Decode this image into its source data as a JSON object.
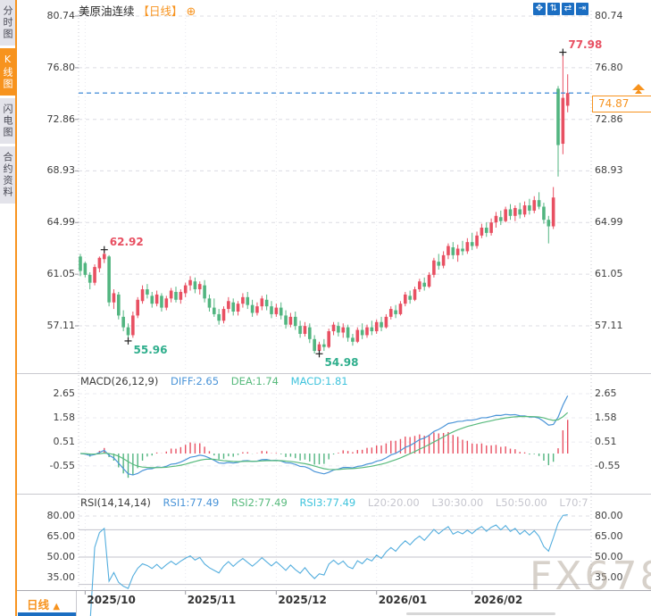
{
  "header": {
    "title": "美原油连续",
    "period_tag": "【日线】",
    "expand_icon": "⊕"
  },
  "toolbar": {
    "icons": [
      {
        "name": "pan-icon",
        "glyph": "✥"
      },
      {
        "name": "zoom-vertical-icon",
        "glyph": "⇅"
      },
      {
        "name": "zoom-horizontal-icon",
        "glyph": "⇄"
      },
      {
        "name": "jump-to-latest-icon",
        "glyph": "⇥"
      }
    ]
  },
  "sidebar": {
    "items": [
      {
        "label": "分时图",
        "active": false
      },
      {
        "label": "K线图",
        "active": true
      },
      {
        "label": "闪电图",
        "active": false
      },
      {
        "label": "合约资料",
        "active": false
      }
    ]
  },
  "bottom_bar": {
    "period_label": "日线",
    "arrow": "▲"
  },
  "watermark": "FX678",
  "colors": {
    "up": "#e85062",
    "down": "#52b580",
    "label_up": "#e85062",
    "label_down": "#2eae8c",
    "accent_orange": "#f7931e",
    "last_price_line": "#2b7fd4",
    "diff_line": "#4a94d8",
    "dea_line": "#58ba7d",
    "rsi_line": "#54aede",
    "grid": "#dcdce3",
    "level_line": "#c3c3cb",
    "axis_text": "#404040",
    "icon_blue": "#1b6ec2",
    "cross": "#222222"
  },
  "chart_data": {
    "type": "candlestick",
    "symbol": "美原油连续",
    "interval": "日线",
    "x_ticks": [
      {
        "label": "2025/10",
        "index": 1
      },
      {
        "label": "2025/11",
        "index": 22
      },
      {
        "label": "2025/12",
        "index": 41
      },
      {
        "label": "2026/01",
        "index": 62
      },
      {
        "label": "2026/02",
        "index": 82
      }
    ],
    "main": {
      "y_ticks": [
        "80.74",
        "76.80",
        "72.86",
        "68.93",
        "64.99",
        "61.05",
        "57.11"
      ],
      "last_price": "74.87",
      "annotations": [
        {
          "index": 5,
          "side": "high",
          "label": "62.92"
        },
        {
          "index": 10,
          "side": "low",
          "label": "55.96"
        },
        {
          "index": 50,
          "side": "low",
          "label": "54.98"
        },
        {
          "index": 101,
          "side": "high",
          "label": "77.98"
        }
      ],
      "candles": [
        [
          62.4,
          62.6,
          60.9,
          61.3
        ],
        [
          61.9,
          62.0,
          60.8,
          61.0
        ],
        [
          61.0,
          61.2,
          59.9,
          60.4
        ],
        [
          60.4,
          61.8,
          60.2,
          61.6
        ],
        [
          61.5,
          62.4,
          61.2,
          62.3
        ],
        [
          62.2,
          62.92,
          61.9,
          62.6
        ],
        [
          62.4,
          62.5,
          58.6,
          58.9
        ],
        [
          58.9,
          59.9,
          58.4,
          59.6
        ],
        [
          59.5,
          59.7,
          57.6,
          57.9
        ],
        [
          57.8,
          58.3,
          56.7,
          57.0
        ],
        [
          57.0,
          57.3,
          55.96,
          56.4
        ],
        [
          56.4,
          58.2,
          56.2,
          57.9
        ],
        [
          57.9,
          59.3,
          57.7,
          59.1
        ],
        [
          59.0,
          60.2,
          58.8,
          59.9
        ],
        [
          59.9,
          60.3,
          59.2,
          59.5
        ],
        [
          59.4,
          59.7,
          58.5,
          58.8
        ],
        [
          58.8,
          59.8,
          58.6,
          59.5
        ],
        [
          59.4,
          59.6,
          58.2,
          58.5
        ],
        [
          58.5,
          59.4,
          58.3,
          59.2
        ],
        [
          59.2,
          60.0,
          58.9,
          59.8
        ],
        [
          59.7,
          60.1,
          58.9,
          59.1
        ],
        [
          59.1,
          59.9,
          58.8,
          59.7
        ],
        [
          59.6,
          60.4,
          59.3,
          60.2
        ],
        [
          60.2,
          60.9,
          59.8,
          60.6
        ],
        [
          60.5,
          60.8,
          59.6,
          59.9
        ],
        [
          59.9,
          60.5,
          59.5,
          60.3
        ],
        [
          60.2,
          60.6,
          58.9,
          59.2
        ],
        [
          59.2,
          59.5,
          58.2,
          58.5
        ],
        [
          58.5,
          59.2,
          57.8,
          58.0
        ],
        [
          58.0,
          58.4,
          57.2,
          57.5
        ],
        [
          57.5,
          58.6,
          57.3,
          58.4
        ],
        [
          58.4,
          59.3,
          58.1,
          59.0
        ],
        [
          58.9,
          59.2,
          57.9,
          58.2
        ],
        [
          58.2,
          59.0,
          57.9,
          58.8
        ],
        [
          58.8,
          59.6,
          58.5,
          59.3
        ],
        [
          59.3,
          59.7,
          58.4,
          58.7
        ],
        [
          58.7,
          59.1,
          57.8,
          58.1
        ],
        [
          58.1,
          58.9,
          57.9,
          58.6
        ],
        [
          58.6,
          59.4,
          58.3,
          59.2
        ],
        [
          59.1,
          59.5,
          58.3,
          58.6
        ],
        [
          58.6,
          59.0,
          57.7,
          58.0
        ],
        [
          58.0,
          58.8,
          57.8,
          58.5
        ],
        [
          58.5,
          58.9,
          57.6,
          57.9
        ],
        [
          57.9,
          58.3,
          56.9,
          57.2
        ],
        [
          57.2,
          58.1,
          57.0,
          57.8
        ],
        [
          57.8,
          58.2,
          56.8,
          57.1
        ],
        [
          57.1,
          57.5,
          56.2,
          56.5
        ],
        [
          56.5,
          57.4,
          56.3,
          57.1
        ],
        [
          57.0,
          57.3,
          55.8,
          56.1
        ],
        [
          56.1,
          56.4,
          55.0,
          55.2
        ],
        [
          55.2,
          55.9,
          54.98,
          55.7
        ],
        [
          55.7,
          56.1,
          55.2,
          55.5
        ],
        [
          55.5,
          56.9,
          55.4,
          56.7
        ],
        [
          56.7,
          57.4,
          56.4,
          57.2
        ],
        [
          57.1,
          57.4,
          56.3,
          56.6
        ],
        [
          56.6,
          57.3,
          56.2,
          57.0
        ],
        [
          57.0,
          57.2,
          55.9,
          56.2
        ],
        [
          56.2,
          56.5,
          55.6,
          55.9
        ],
        [
          55.9,
          57.0,
          55.8,
          56.8
        ],
        [
          56.8,
          57.3,
          56.1,
          56.4
        ],
        [
          56.4,
          57.2,
          56.2,
          57.0
        ],
        [
          57.0,
          57.5,
          56.4,
          56.7
        ],
        [
          56.7,
          57.6,
          56.5,
          57.4
        ],
        [
          57.4,
          57.8,
          56.7,
          57.0
        ],
        [
          57.0,
          58.0,
          56.9,
          57.8
        ],
        [
          57.8,
          58.6,
          57.6,
          58.4
        ],
        [
          58.3,
          58.7,
          57.7,
          58.0
        ],
        [
          58.0,
          59.0,
          57.9,
          58.8
        ],
        [
          58.8,
          59.7,
          58.6,
          59.5
        ],
        [
          59.4,
          59.8,
          58.8,
          59.1
        ],
        [
          59.1,
          60.1,
          59.0,
          59.9
        ],
        [
          59.9,
          60.7,
          59.7,
          60.5
        ],
        [
          60.4,
          60.8,
          59.8,
          60.1
        ],
        [
          60.1,
          61.2,
          60.0,
          61.0
        ],
        [
          61.0,
          62.3,
          60.8,
          62.1
        ],
        [
          62.0,
          62.6,
          61.4,
          61.7
        ],
        [
          61.7,
          62.8,
          61.5,
          62.5
        ],
        [
          62.5,
          63.4,
          62.2,
          63.2
        ],
        [
          63.1,
          63.5,
          62.2,
          62.5
        ],
        [
          62.5,
          63.3,
          62.0,
          63.0
        ],
        [
          63.0,
          63.6,
          62.5,
          62.8
        ],
        [
          62.8,
          63.8,
          62.6,
          63.5
        ],
        [
          63.5,
          64.2,
          62.9,
          63.2
        ],
        [
          63.2,
          64.3,
          63.0,
          64.0
        ],
        [
          64.0,
          64.9,
          63.8,
          64.6
        ],
        [
          64.6,
          65.0,
          63.9,
          64.2
        ],
        [
          64.2,
          65.3,
          64.0,
          65.0
        ],
        [
          65.0,
          65.8,
          64.6,
          65.5
        ],
        [
          65.4,
          65.9,
          64.8,
          65.1
        ],
        [
          65.1,
          66.2,
          65.0,
          66.0
        ],
        [
          66.0,
          66.4,
          65.2,
          65.5
        ],
        [
          65.5,
          66.3,
          65.1,
          66.1
        ],
        [
          66.0,
          66.5,
          65.3,
          65.6
        ],
        [
          65.6,
          66.6,
          65.4,
          66.3
        ],
        [
          66.3,
          66.8,
          65.6,
          65.9
        ],
        [
          65.9,
          67.0,
          65.7,
          66.7
        ],
        [
          66.7,
          67.3,
          66.0,
          66.2
        ],
        [
          66.2,
          66.5,
          64.9,
          65.2
        ],
        [
          65.2,
          65.5,
          63.4,
          64.7
        ],
        [
          64.7,
          67.7,
          64.5,
          66.9
        ],
        [
          75.2,
          75.4,
          68.5,
          70.9
        ],
        [
          71.0,
          77.98,
          70.2,
          74.5
        ],
        [
          73.9,
          76.3,
          73.4,
          74.87
        ]
      ]
    },
    "macd": {
      "title": "MACD(26,12,9)",
      "diff_label": "DIFF:2.65",
      "dea_label": "DEA:1.74",
      "macd_label": "MACD:1.81",
      "params": {
        "fast": 12,
        "slow": 26,
        "signal": 9
      },
      "y_ticks": [
        "2.65",
        "1.58",
        "0.51",
        "-0.55"
      ]
    },
    "rsi": {
      "title": "RSI(14,14,14)",
      "rsi1_label": "RSI1:77.49",
      "rsi2_label": "RSI2:77.49",
      "rsi3_label": "RSI3:77.49",
      "level_labels": [
        "L20:20.00",
        "L30:30.00",
        "L50:50.00",
        "L70:7"
      ],
      "period": 14,
      "y_ticks": [
        "80.00",
        "65.00",
        "50.00",
        "35.00"
      ],
      "levels": [
        70,
        50,
        30
      ]
    }
  }
}
